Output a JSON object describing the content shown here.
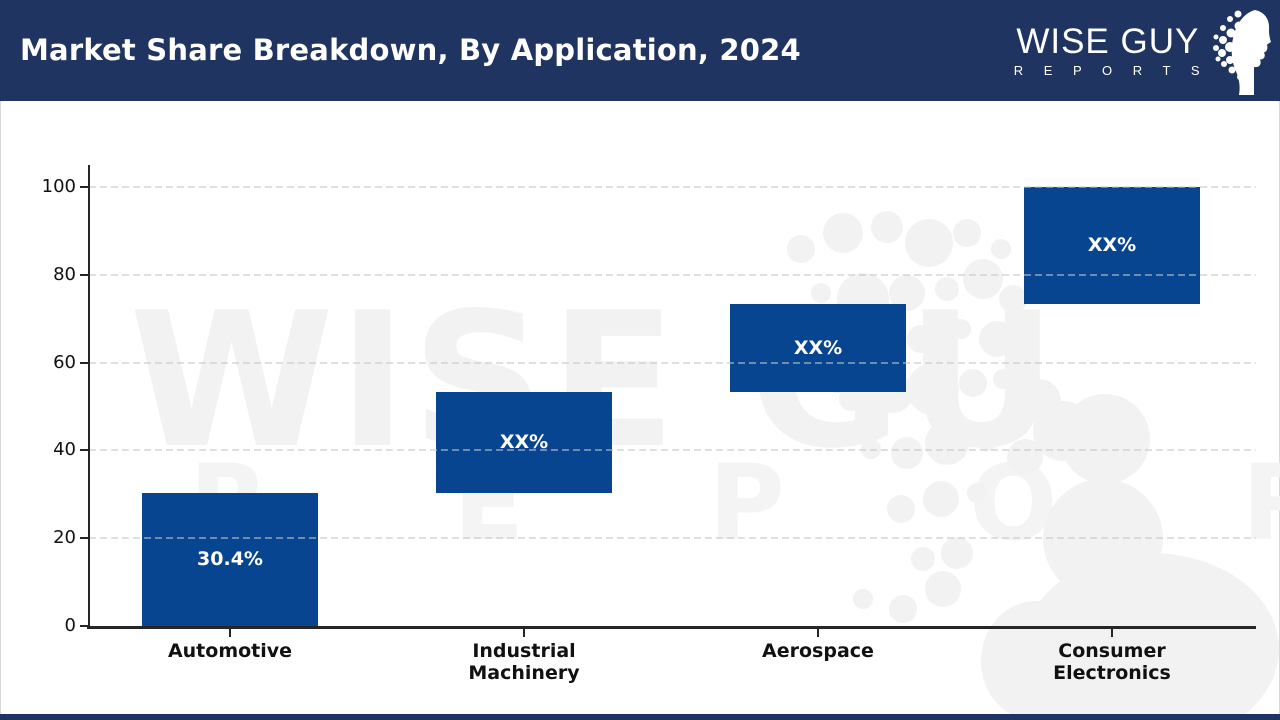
{
  "header": {
    "title": "Market Share Breakdown, By Application, 2024"
  },
  "logo": {
    "wordmark": "WISE GUY",
    "subtext": "R E P O R T S"
  },
  "watermark": {
    "line1": "WISE GU",
    "line2": "R E P O R T S"
  },
  "colors": {
    "header_bg": "#203461",
    "bar": "#084591",
    "bar_label": "#ffffff",
    "axis": "#262626",
    "gridline": "#c9ccd0",
    "watermark": "#f2f2f2"
  },
  "chart_data": {
    "type": "bar",
    "subtype": "waterfall",
    "title": "Market Share Breakdown, By Application, 2024",
    "categories": [
      "Automotive",
      "Industrial\nMachinery",
      "Aerospace",
      "Consumer\nElectronics"
    ],
    "segments": [
      {
        "category": "Automotive",
        "start": 0,
        "end": 30.4,
        "label": "30.4%"
      },
      {
        "category": "Industrial Machinery",
        "start": 30.4,
        "end": 53.4,
        "label": "XX%"
      },
      {
        "category": "Aerospace",
        "start": 53.4,
        "end": 73.4,
        "label": "XX%"
      },
      {
        "category": "Consumer Electronics",
        "start": 73.4,
        "end": 100.0,
        "label": "XX%"
      }
    ],
    "ylim": [
      0,
      100
    ],
    "yticks": [
      0,
      20,
      40,
      60,
      80,
      100
    ],
    "xlabel": "",
    "ylabel": "",
    "grid": "horizontal-dashed",
    "legend": "none"
  }
}
